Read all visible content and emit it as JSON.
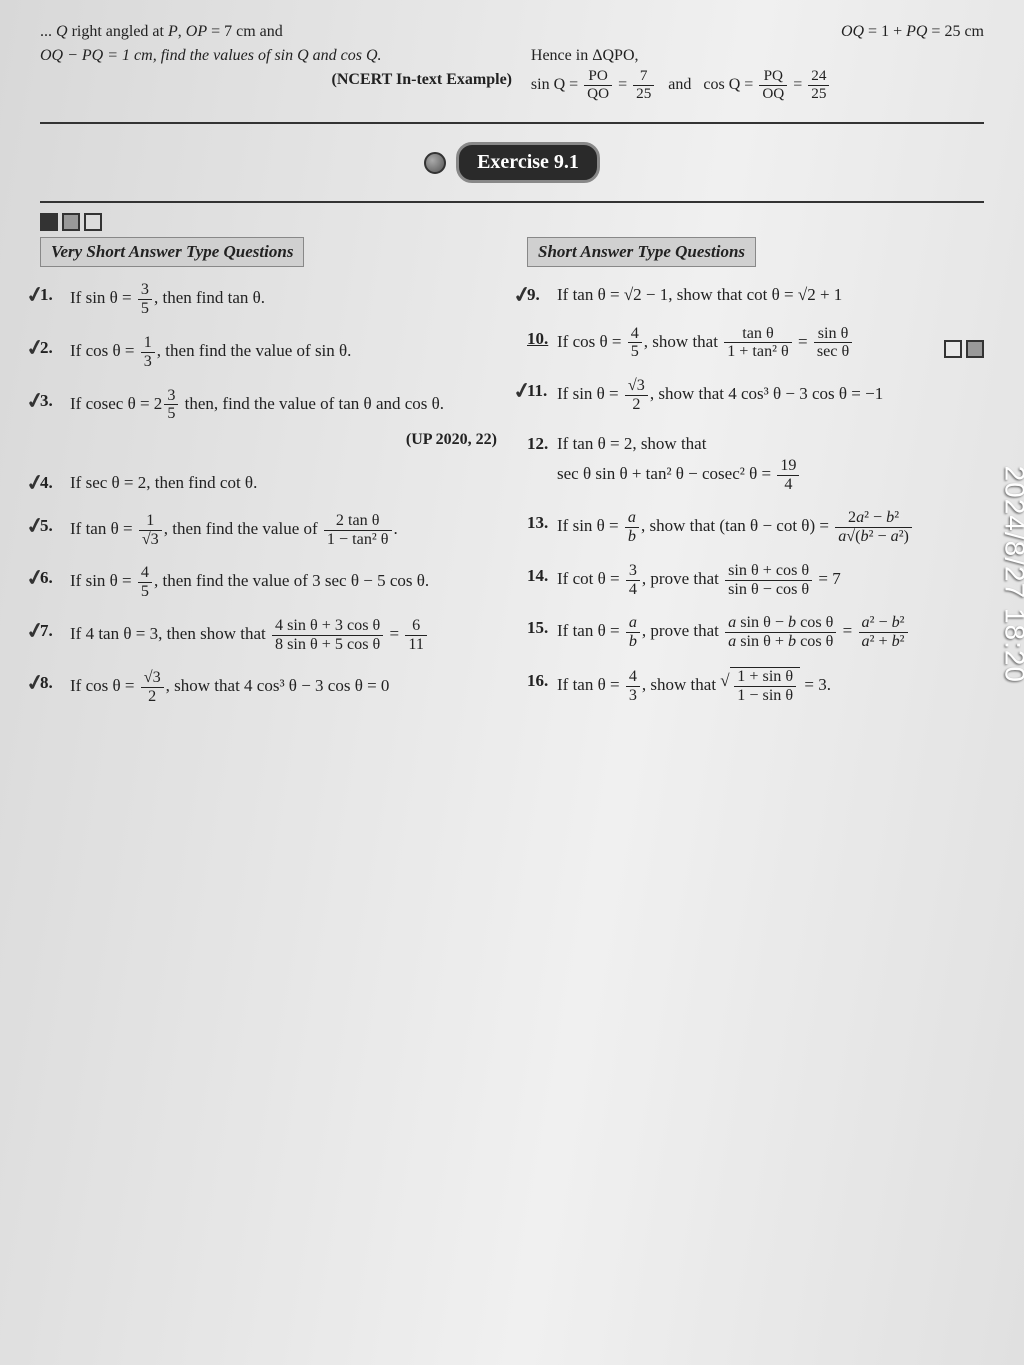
{
  "timestamp": "2024/8/27 18:20",
  "top": {
    "left_line": "OQ − PQ = 1 cm, find the values of sin Q and cos Q.",
    "right_angle": "right angled at P, OP = 7 cm and",
    "ncert": "(NCERT In-text Example)",
    "oq_eq": "OQ = 1 + PQ = 25 cm",
    "hence": "Hence in ΔQPO,",
    "sinQ_label": "sin Q =",
    "sinQ_frac_num": "PO",
    "sinQ_frac_den": "QO",
    "sinQ_eq_num": "7",
    "sinQ_eq_den": "25",
    "and": "and",
    "cosQ_label": "cos Q =",
    "cosQ_frac_num": "PQ",
    "cosQ_frac_den": "OQ",
    "cosQ_eq_num": "24",
    "cosQ_eq_den": "25"
  },
  "exercise_label": "Exercise 9.1",
  "vsq_header": "Very Short Answer Type Questions",
  "saq_header": "Short Answer Type Questions",
  "vsq": [
    {
      "n": "1.",
      "t": "If sin θ = 3/5, then find tan θ.",
      "f": {
        "num": "3",
        "den": "5"
      },
      "pre": "If sin θ = ",
      "post": ", then find tan θ."
    },
    {
      "n": "2.",
      "t": "",
      "pre": "If cos θ = ",
      "f": {
        "num": "1",
        "den": "3"
      },
      "post": ", then find the value of sin θ."
    },
    {
      "n": "3.",
      "t": "",
      "pre": "If cosec θ = 2",
      "f": {
        "num": "3",
        "den": "5"
      },
      "post": " then, find the value of tan θ and cos θ.",
      "ref": "(UP 2020, 22)"
    },
    {
      "n": "4.",
      "t": "If sec θ = 2, then find cot θ."
    },
    {
      "n": "5.",
      "t": "",
      "pre": "If tan θ = ",
      "f": {
        "num": "1",
        "den": "√3"
      },
      "post": ", then find the value of ",
      "f2": {
        "num": "2 tan θ",
        "den": "1 − tan² θ"
      },
      "post2": "."
    },
    {
      "n": "6.",
      "t": "",
      "pre": "If sin θ = ",
      "f": {
        "num": "4",
        "den": "5"
      },
      "post": ", then find the value of 3 sec θ − 5 cos θ."
    },
    {
      "n": "7.",
      "t": "",
      "pre": "If 4 tan θ = 3, then show that ",
      "f": {
        "num": "4 sin θ + 3 cos θ",
        "den": "8 sin θ + 5 cos θ"
      },
      "post": " = ",
      "f2": {
        "num": "6",
        "den": "11"
      }
    },
    {
      "n": "8.",
      "t": "",
      "pre": "If cos θ = ",
      "f": {
        "num": "√3",
        "den": "2"
      },
      "post": ", show that 4 cos³ θ − 3 cos θ = 0"
    }
  ],
  "saq": [
    {
      "n": "9.",
      "t": "If tan θ = √2 − 1, show that cot θ = √2 + 1"
    },
    {
      "n": "10.",
      "pre": "If cos θ = ",
      "f": {
        "num": "4",
        "den": "5"
      },
      "post": ", show that ",
      "f2": {
        "num": "tan θ",
        "den": "1 + tan² θ"
      },
      "post2": " = ",
      "f3": {
        "num": "sin θ",
        "den": "sec θ"
      }
    },
    {
      "n": "11.",
      "pre": "If sin θ = ",
      "f": {
        "num": "√3",
        "den": "2"
      },
      "post": ", show that 4 cos³ θ − 3 cos θ = −1"
    },
    {
      "n": "12.",
      "pre": "If tan θ = 2, show that",
      "line2": "sec θ sin θ + tan² θ − cosec² θ = ",
      "f": {
        "num": "19",
        "den": "4"
      }
    },
    {
      "n": "13.",
      "pre": "If sin θ = ",
      "f": {
        "num": "a",
        "den": "b"
      },
      "post": ", show that (tan θ − cot θ) = ",
      "f2": {
        "num": "2a² − b²",
        "den": "a√(b² − a²)"
      }
    },
    {
      "n": "14.",
      "pre": "If cot θ = ",
      "f": {
        "num": "3",
        "den": "4"
      },
      "post": ", prove that ",
      "f2": {
        "num": "sin θ + cos θ",
        "den": "sin θ − cos θ"
      },
      "post2": " = 7"
    },
    {
      "n": "15.",
      "pre": "If tan θ = ",
      "f": {
        "num": "a",
        "den": "b"
      },
      "post": ", prove that ",
      "f2": {
        "num": "a sin θ − b cos θ",
        "den": "a sin θ + b cos θ"
      },
      "post2": " = ",
      "f3": {
        "num": "a² − b²",
        "den": "a² + b²"
      }
    },
    {
      "n": "16.",
      "pre": "If tan θ = ",
      "f": {
        "num": "4",
        "den": "3"
      },
      "post": ", show that ",
      "sq": {
        "num": "1 + sin θ",
        "den": "1 − sin θ"
      },
      "post2": " = 3."
    }
  ],
  "colors": {
    "page_bg": "#e8e8e8",
    "text": "#222222",
    "badge_bg": "#2a2a2a",
    "badge_text": "#ffffff",
    "header_bg": "#d0d0d0"
  }
}
